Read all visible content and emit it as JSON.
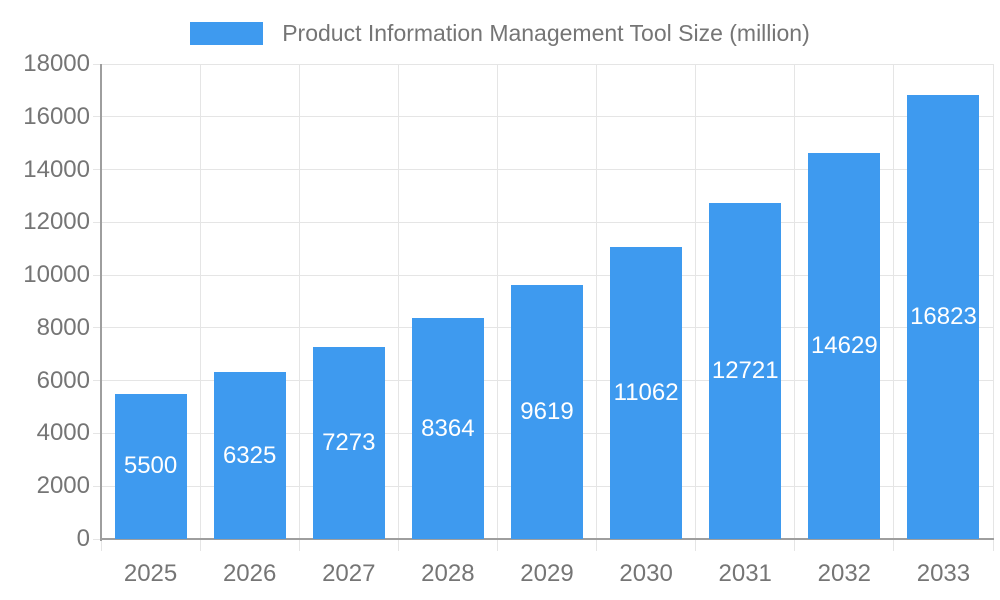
{
  "chart_data": {
    "type": "bar",
    "title": "Product Information Management Tool Size (million)",
    "legend": {
      "position": "top-center",
      "entries": [
        "Product Information Management Tool Size (million)"
      ]
    },
    "categories": [
      "2025",
      "2026",
      "2027",
      "2028",
      "2029",
      "2030",
      "2031",
      "2032",
      "2033"
    ],
    "values": [
      5500,
      6325,
      7273,
      8364,
      9619,
      11062,
      12721,
      14629,
      16823
    ],
    "value_labels": {
      "visible": true,
      "placement": "inside-center"
    },
    "xlabel": "",
    "ylabel": "",
    "ylim": [
      0,
      18000
    ],
    "ytick_step": 2000,
    "ytick_labels": [
      "0",
      "2000",
      "4000",
      "6000",
      "8000",
      "10000",
      "12000",
      "14000",
      "16000",
      "18000"
    ],
    "grid": {
      "horizontal": true,
      "vertical": true
    },
    "colors": {
      "bar": "#3E9AEF",
      "value_label": "#FFFFFF",
      "axis_text": "#757575",
      "axis_line": "#9E9E9E",
      "gridline": "#E5E5E5",
      "background": "#FFFFFF"
    }
  }
}
